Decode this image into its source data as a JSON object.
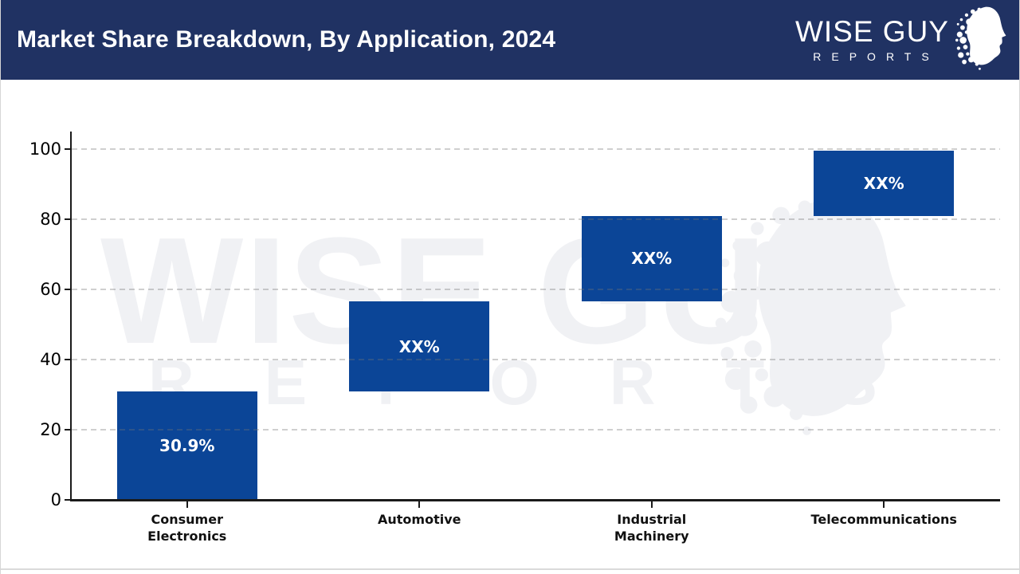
{
  "page": {
    "background": "#ffffff",
    "edge_border_color": "#d6d6d6"
  },
  "header": {
    "bg_color": "#203263",
    "title": "Market Share Breakdown, By Application, 2024",
    "logo_line1": "WISE GUY",
    "logo_line2": "REPORTS"
  },
  "watermark": {
    "line1": "WISE GUY",
    "line2": "REPORTS"
  },
  "chart_data": {
    "type": "bar",
    "variant": "waterfall",
    "title": "Market Share Breakdown, By Application, 2024",
    "categories": [
      "Consumer Electronics",
      "Automotive",
      "Industrial Machinery",
      "Telecommunications"
    ],
    "category_lines": [
      [
        "Consumer",
        "Electronics"
      ],
      [
        "Automotive"
      ],
      [
        "Industrial",
        "Machinery"
      ],
      [
        "Telecommunications"
      ]
    ],
    "segments": [
      {
        "category": "Consumer Electronics",
        "start": 0,
        "end": 30.9,
        "label": "30.9%"
      },
      {
        "category": "Automotive",
        "start": 30.9,
        "end": 56.5,
        "label": "XX%"
      },
      {
        "category": "Industrial Machinery",
        "start": 56.5,
        "end": 81.0,
        "label": "XX%"
      },
      {
        "category": "Telecommunications",
        "start": 81.0,
        "end": 99.5,
        "label": "XX%"
      }
    ],
    "xlabel": "",
    "ylabel": "",
    "ylim": [
      0,
      100
    ],
    "yticks": [
      0,
      20,
      40,
      60,
      80,
      100
    ],
    "grid": "horizontal-dashed",
    "legend": "none",
    "bar_color": "#0b4597",
    "bar_label_color": "#ffffff",
    "axis_color": "#1a1a1a",
    "grid_color": "#d6d6d6"
  }
}
